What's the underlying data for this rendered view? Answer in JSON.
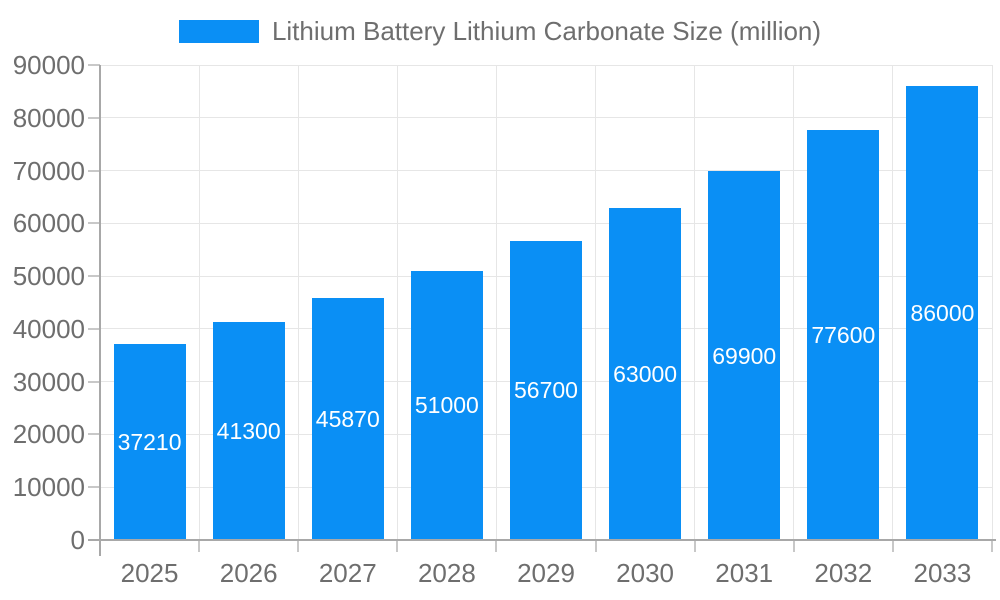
{
  "legend": {
    "label": "Lithium Battery Lithium Carbonate Size (million)"
  },
  "chart_data": {
    "type": "bar",
    "title": "Lithium Battery Lithium Carbonate Size (million)",
    "series_name": "Lithium Battery Lithium Carbonate Size (million)",
    "categories": [
      "2025",
      "2026",
      "2027",
      "2028",
      "2029",
      "2030",
      "2031",
      "2032",
      "2033"
    ],
    "values": [
      37210,
      41300,
      45870,
      51000,
      56700,
      63000,
      69900,
      77600,
      86000
    ],
    "value_labels": [
      "37210",
      "41300",
      "45870",
      "51000",
      "56700",
      "63000",
      "69900",
      "77600",
      "86000"
    ],
    "xlabel": "",
    "ylabel": "",
    "ylim": [
      0,
      90000
    ],
    "yticks": [
      0,
      10000,
      20000,
      30000,
      40000,
      50000,
      60000,
      70000,
      80000,
      90000
    ],
    "ytick_labels": [
      "0",
      "10000",
      "20000",
      "30000",
      "40000",
      "50000",
      "60000",
      "70000",
      "80000",
      "90000"
    ],
    "grid": true,
    "legend_position": "top",
    "value_label_position": "inside-center"
  },
  "colors": {
    "bar": "#0a8ff5",
    "gridline": "#e6e6e6",
    "axis_line": "#a8a8a8",
    "tick_mark": "#c8c8c8",
    "axis_text": "#6e6e6e",
    "value_label_text": "#ffffff",
    "background": "#ffffff"
  }
}
